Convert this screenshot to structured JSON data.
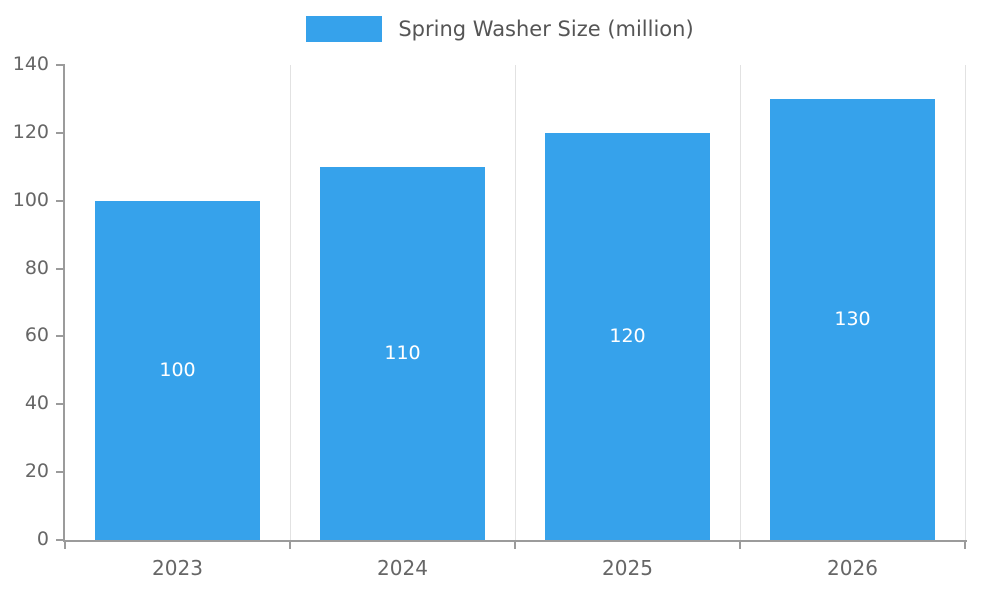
{
  "chart_data": {
    "type": "bar",
    "title": "Spring Washer Size (million)",
    "categories": [
      "2023",
      "2024",
      "2025",
      "2026"
    ],
    "values": [
      100,
      110,
      120,
      130
    ],
    "bar_value_labels": [
      "100",
      "110",
      "120",
      "130"
    ],
    "xlabel": "",
    "ylabel": "",
    "ylim": [
      0,
      140
    ],
    "ytick_step": 20,
    "ytick_labels": [
      "0",
      "20",
      "40",
      "60",
      "80",
      "100",
      "120",
      "140"
    ],
    "legend_position": "top-center",
    "grid": "vertical-only",
    "bar_color": "#36a2eb",
    "bar_label_color": "#ffffff",
    "axis_color": "#9b9b9b",
    "gridline_color": "#e2e2e2",
    "tick_text_color": "#666666",
    "legend_text_color": "#555555"
  }
}
